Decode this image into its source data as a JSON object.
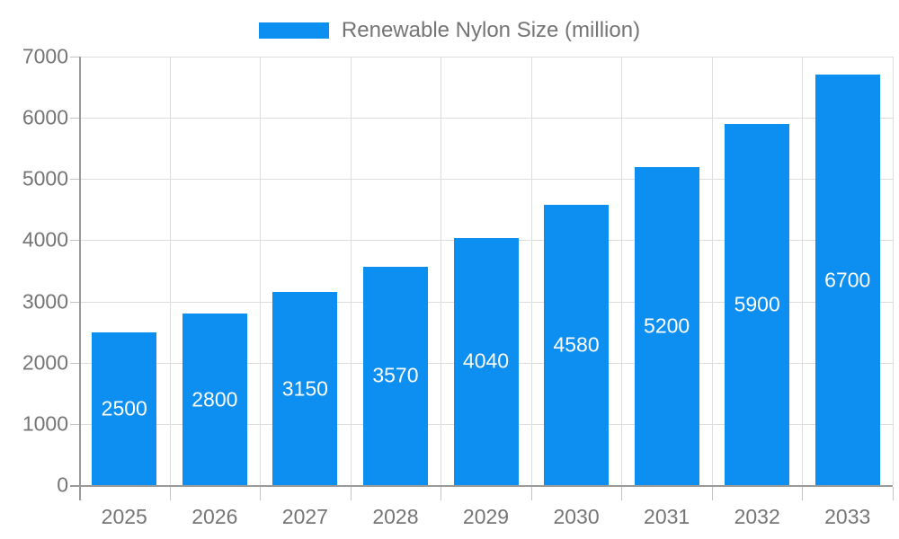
{
  "legend": {
    "label": "Renewable Nylon Size (million)"
  },
  "colors": {
    "background": "#ffffff",
    "bar": "#0d8ff2",
    "axis_line": "#999999",
    "grid_line": "#dddddd",
    "tick": "#c4c4c4",
    "axis_text": "#757575",
    "bar_label_text": "#ffffff"
  },
  "chart_data": {
    "type": "bar",
    "title": "Renewable Nylon Size (million)",
    "categories": [
      "2025",
      "2026",
      "2027",
      "2028",
      "2029",
      "2030",
      "2031",
      "2032",
      "2033"
    ],
    "values": [
      2500,
      2800,
      3150,
      3570,
      4040,
      4580,
      5200,
      5900,
      6700
    ],
    "series_name": "Renewable Nylon Size (million)",
    "xlabel": "",
    "ylabel": "",
    "ylim": [
      0,
      7000
    ],
    "y_tick_interval": 1000,
    "y_tick_labels": [
      "0",
      "1000",
      "2000",
      "3000",
      "4000",
      "5000",
      "6000",
      "7000"
    ],
    "grid": true,
    "legend_position": "top-center",
    "data_labels": "inside-middle"
  }
}
